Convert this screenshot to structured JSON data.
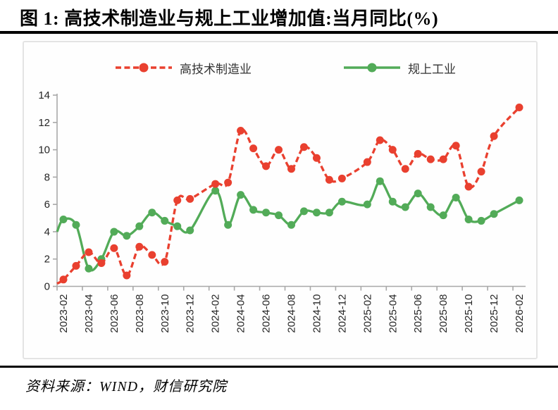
{
  "title": "图 1:  高技术制造业与规上工业增加值:当月同比(%)",
  "source": "资料来源：WIND，财信研究院",
  "colors": {
    "hightech_red": "#e9402f",
    "industry_green": "#52ab58",
    "axis_gray": "#a8a8a8",
    "rule_black": "#000000",
    "box_border": "#e4e4e4"
  },
  "legend": [
    {
      "label": "高技术制造业"
    },
    {
      "label": "规上工业"
    }
  ],
  "chart_data": {
    "type": "line",
    "title": "高技术制造业与规上工业增加值:当月同比(%)",
    "xlabel": "",
    "ylabel": "",
    "ylim": [
      0,
      14
    ],
    "y_ticks": [
      0,
      2,
      4,
      6,
      8,
      10,
      12,
      14
    ],
    "grid": false,
    "legend_position": "top",
    "categories": [
      "2023-02",
      "2023-03",
      "2023-04",
      "2023-05",
      "2023-06",
      "2023-07",
      "2023-08",
      "2023-09",
      "2023-10",
      "2023-11",
      "2023-12",
      "2024-01",
      "2024-02",
      "2024-03",
      "2024-04",
      "2024-05",
      "2024-06",
      "2024-07",
      "2024-08",
      "2024-09",
      "2024-10",
      "2024-11",
      "2024-12",
      "2025-01",
      "2025-02",
      "2025-03",
      "2025-04",
      "2025-05",
      "2025-06",
      "2025-07",
      "2025-08",
      "2025-09",
      "2025-10",
      "2025-11",
      "2025-12",
      "2026-01",
      "2026-02"
    ],
    "x_tick_labels": [
      "2023-02",
      "2023-04",
      "2023-06",
      "2023-08",
      "2023-10",
      "2023-12",
      "2024-02",
      "2024-04",
      "2024-06",
      "2024-08",
      "2024-10",
      "2024-12",
      "2025-02",
      "2025-04",
      "2025-06",
      "2025-08",
      "2025-10",
      "2025-12",
      "2026-02"
    ],
    "series": [
      {
        "name": "高技术制造业",
        "color": "#e9402f",
        "style": "dashed",
        "marker": "circle",
        "lead_in": 0.2,
        "values": [
          0.5,
          1.5,
          2.5,
          1.7,
          2.8,
          0.8,
          2.9,
          2.3,
          1.8,
          6.3,
          6.4,
          null,
          7.5,
          7.6,
          11.4,
          10.1,
          8.8,
          10.0,
          8.6,
          10.2,
          9.4,
          7.8,
          7.9,
          null,
          9.1,
          10.7,
          10.0,
          8.6,
          9.7,
          9.3,
          9.3,
          10.3,
          7.3,
          8.4,
          11.0,
          null,
          13.1
        ]
      },
      {
        "name": "规上工业",
        "color": "#52ab58",
        "style": "solid",
        "marker": "circle",
        "lead_in": 4.0,
        "values": [
          4.9,
          4.5,
          1.3,
          2.0,
          4.0,
          3.7,
          4.4,
          5.4,
          4.8,
          4.4,
          4.1,
          null,
          7.0,
          4.5,
          6.7,
          5.6,
          5.4,
          5.2,
          4.5,
          5.5,
          5.4,
          5.4,
          6.2,
          null,
          6.0,
          7.7,
          6.2,
          5.8,
          6.8,
          5.8,
          5.2,
          6.5,
          4.9,
          4.8,
          5.3,
          null,
          6.3
        ]
      }
    ]
  }
}
